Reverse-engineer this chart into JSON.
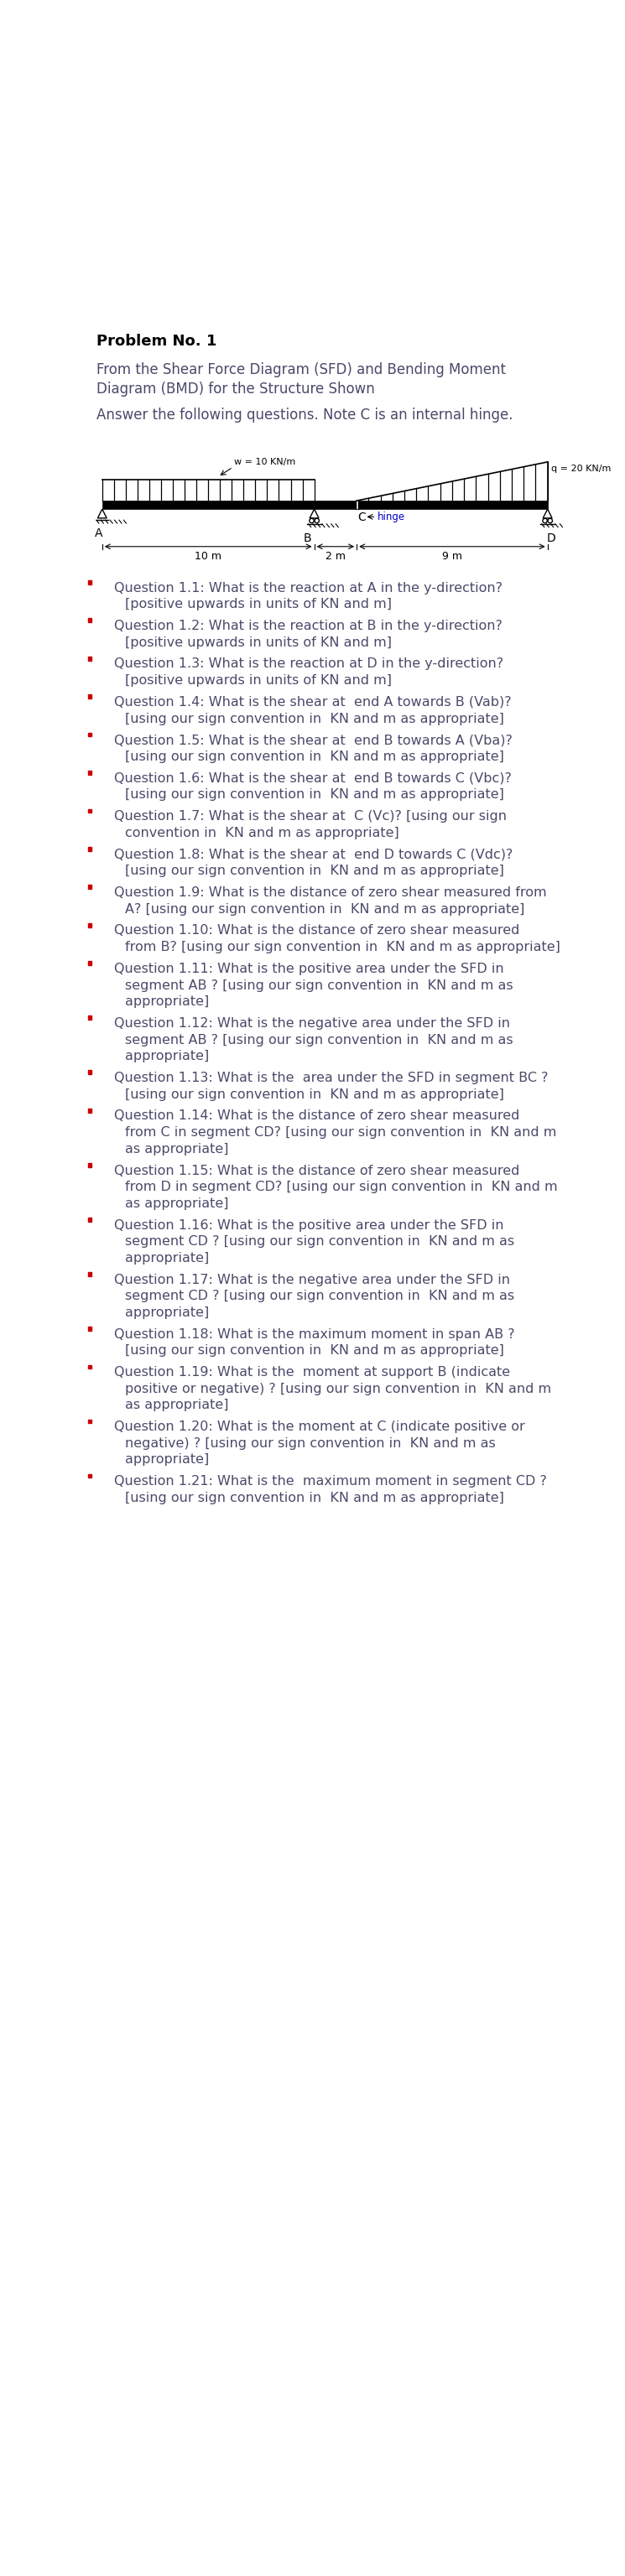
{
  "title": "Problem No. 1",
  "subtitle1": "From the Shear Force Diagram (SFD) and Bending Moment",
  "subtitle2": "Diagram (BMD) for the Structure Shown",
  "subtitle3": "Answer the following questions. Note C is an internal hinge.",
  "bg_color": "#ffffff",
  "text_color": "#4a4a6a",
  "bullet_color": "#cc0000",
  "title_color": "#000000",
  "questions": [
    {
      "num": "Question 1.1: What is the reaction at A in the y-direction?",
      "sub": "[positive upwards in units of KN and m]"
    },
    {
      "num": "Question 1.2: What is the reaction at B in the y-direction?",
      "sub": "[positive upwards in units of KN and m]"
    },
    {
      "num": "Question 1.3: What is the reaction at D in the y-direction?",
      "sub": "[positive upwards in units of KN and m]"
    },
    {
      "num": "Question 1.4: What is the shear at  end A towards B (Vab)?",
      "sub": "[using our sign convention in  KN and m as appropriate]"
    },
    {
      "num": "Question 1.5: What is the shear at  end B towards A (Vba)?",
      "sub": "[using our sign convention in  KN and m as appropriate]"
    },
    {
      "num": "Question 1.6: What is the shear at  end B towards C (Vbc)?",
      "sub": "[using our sign convention in  KN and m as appropriate]"
    },
    {
      "num": "Question 1.7: What is the shear at  C (Vc)? [using our sign",
      "sub": "convention in  KN and m as appropriate]"
    },
    {
      "num": "Question 1.8: What is the shear at  end D towards C (Vdc)?",
      "sub": "[using our sign convention in  KN and m as appropriate]"
    },
    {
      "num": "Question 1.9: What is the distance of zero shear measured from",
      "sub": "A? [using our sign convention in  KN and m as appropriate]"
    },
    {
      "num": "Question 1.10: What is the distance of zero shear measured",
      "sub": "from B? [using our sign convention in  KN and m as appropriate]"
    },
    {
      "num": "Question 1.11: What is the positive area under the SFD in",
      "sub": "segment AB ? [using our sign convention in  KN and m as\nappropriate]"
    },
    {
      "num": "Question 1.12: What is the negative area under the SFD in",
      "sub": "segment AB ? [using our sign convention in  KN and m as\nappropriate]"
    },
    {
      "num": "Question 1.13: What is the  area under the SFD in segment BC ?",
      "sub": "[using our sign convention in  KN and m as appropriate]"
    },
    {
      "num": "Question 1.14: What is the distance of zero shear measured",
      "sub": "from C in segment CD? [using our sign convention in  KN and m\nas appropriate]"
    },
    {
      "num": "Question 1.15: What is the distance of zero shear measured",
      "sub": "from D in segment CD? [using our sign convention in  KN and m\nas appropriate]"
    },
    {
      "num": "Question 1.16: What is the positive area under the SFD in",
      "sub": "segment CD ? [using our sign convention in  KN and m as\nappropriate]"
    },
    {
      "num": "Question 1.17: What is the negative area under the SFD in",
      "sub": "segment CD ? [using our sign convention in  KN and m as\nappropriate]"
    },
    {
      "num": "Question 1.18: What is the maximum moment in span AB ?",
      "sub": "[using our sign convention in  KN and m as appropriate]"
    },
    {
      "num": "Question 1.19: What is the  moment at support B (indicate",
      "sub": "positive or negative) ? [using our sign convention in  KN and m\nas appropriate]"
    },
    {
      "num": "Question 1.20: What is the moment at C (indicate positive or",
      "sub": "negative) ? [using our sign convention in  KN and m as\nappropriate]"
    },
    {
      "num": "Question 1.21: What is the  maximum moment in segment CD ?",
      "sub": "[using our sign convention in  KN and m as appropriate]"
    }
  ]
}
